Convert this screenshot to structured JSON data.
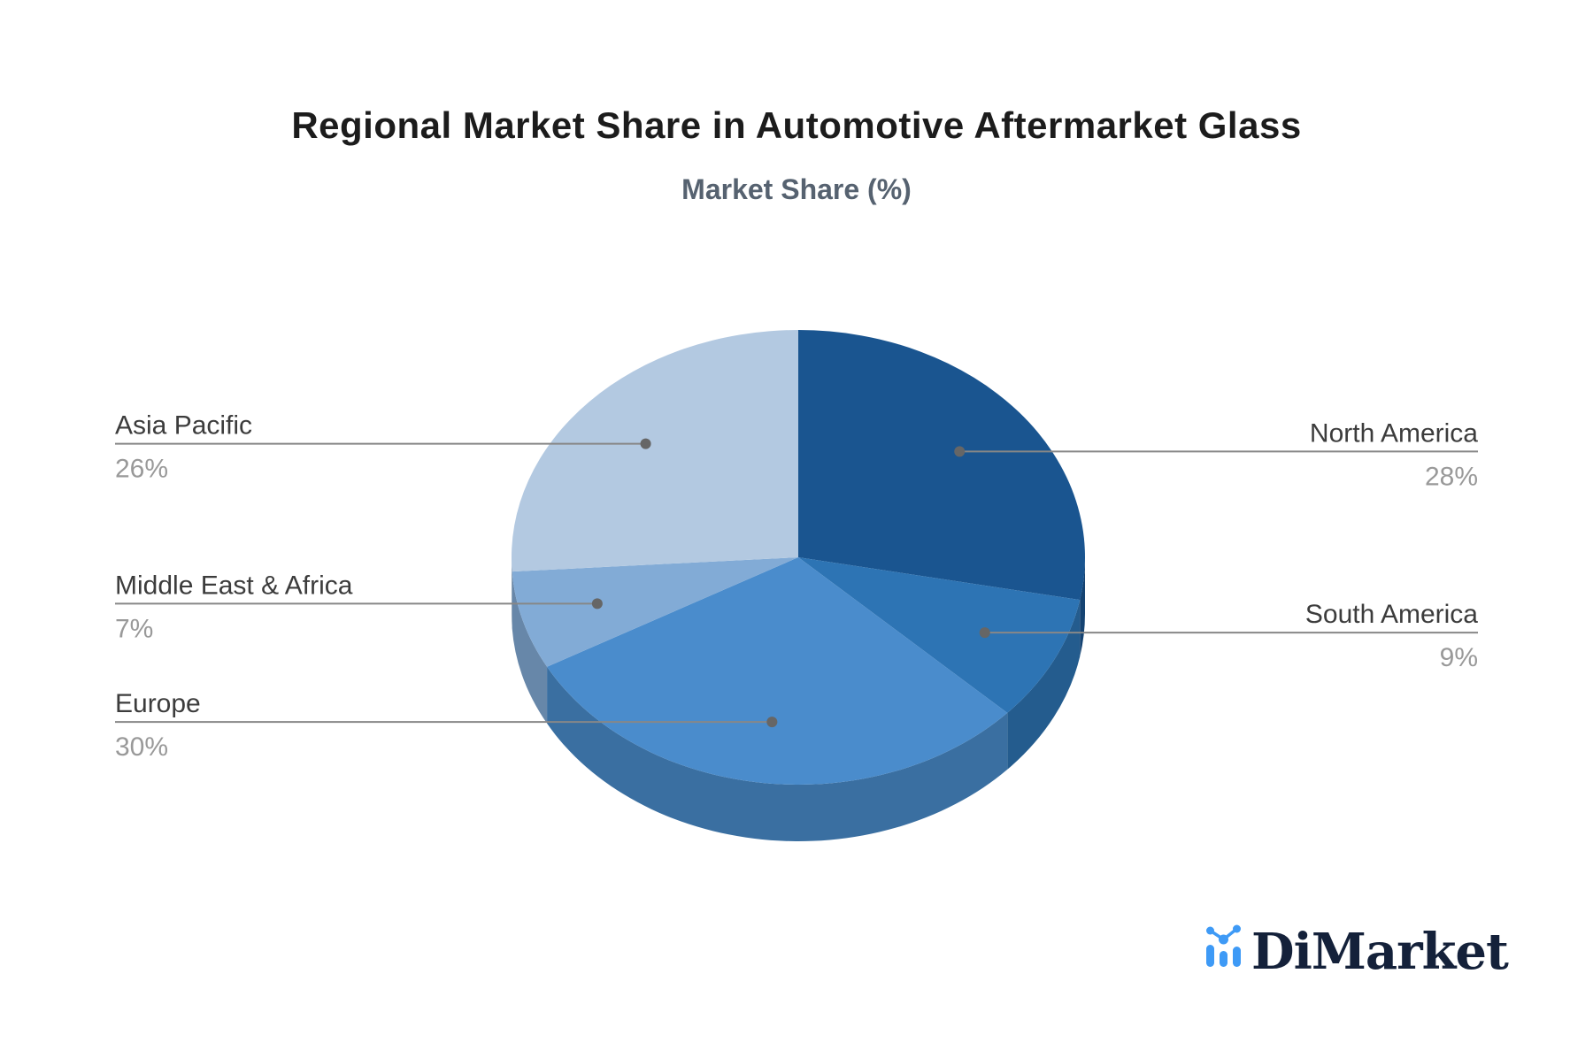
{
  "header": {
    "title": "Regional Market Share in Automotive Aftermarket Glass",
    "subtitle": "Market Share (%)"
  },
  "chart_data": {
    "type": "pie",
    "title": "Regional Market Share in Automotive Aftermarket Glass",
    "subtitle": "Market Share (%)",
    "unit": "%",
    "style_3d": true,
    "legend": "none",
    "labels": "callout",
    "direction": "clockwise",
    "start_angle_deg": 0,
    "slices": [
      {
        "label": "North America",
        "value": 28,
        "display_value": "28%",
        "color": "#1a5590"
      },
      {
        "label": "South America",
        "value": 9,
        "display_value": "9%",
        "color": "#2d74b4"
      },
      {
        "label": "Europe",
        "value": 30,
        "display_value": "30%",
        "color": "#4a8ccc"
      },
      {
        "label": "Middle East & Africa",
        "value": 7,
        "display_value": "7%",
        "color": "#82abd6"
      },
      {
        "label": "Asia Pacific",
        "value": 26,
        "display_value": "26%",
        "color": "#b3c9e1"
      }
    ],
    "callout_style": {
      "line_color": "#878787",
      "dot_color": "#666666",
      "name_color": "#3c3c3c",
      "value_color": "#999999"
    }
  },
  "branding": {
    "logo_text": "DiMarket",
    "logo_icon": "bar-line-chart-icon",
    "logo_icon_color": "#3E9AF6",
    "logo_text_color": "#14213a"
  }
}
